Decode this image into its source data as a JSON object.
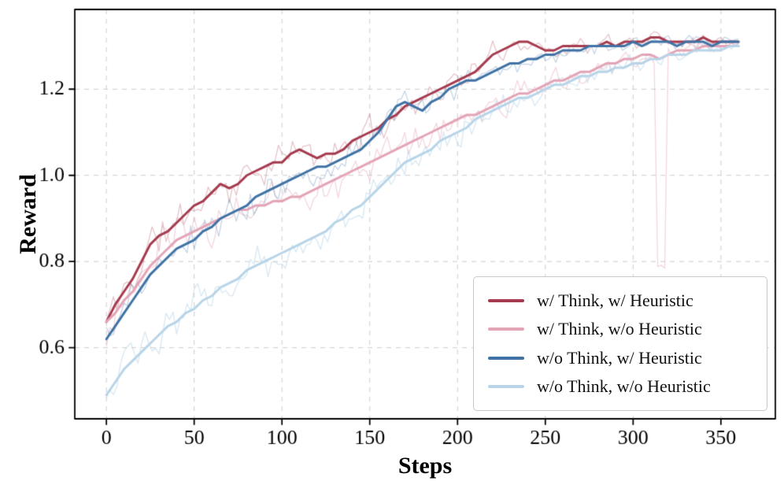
{
  "chart_data": {
    "type": "line",
    "title": "",
    "xlabel": "Steps",
    "ylabel": "Reward",
    "xlim": [
      -18,
      381
    ],
    "ylim": [
      0.435,
      1.385
    ],
    "xticks": [
      0,
      50,
      100,
      150,
      200,
      250,
      300,
      350
    ],
    "yticks": [
      0.6,
      0.8,
      1.0,
      1.2
    ],
    "grid": {
      "on": true,
      "style": "dashed",
      "color": "#cccccc"
    },
    "legend": {
      "position": "lower-right",
      "background": "#ffffff",
      "border_color": "#c9c9c9"
    },
    "x_start": 0,
    "x_step": 5,
    "x_end": 360,
    "series": [
      {
        "name": "w/ Think, w/ Heuristic",
        "color": "#a53b4f",
        "smoothed": [
          0.66,
          0.7,
          0.73,
          0.76,
          0.8,
          0.84,
          0.86,
          0.87,
          0.89,
          0.91,
          0.93,
          0.94,
          0.96,
          0.98,
          0.97,
          0.98,
          1.0,
          1.01,
          1.02,
          1.03,
          1.03,
          1.05,
          1.06,
          1.05,
          1.04,
          1.05,
          1.05,
          1.06,
          1.08,
          1.09,
          1.1,
          1.11,
          1.13,
          1.14,
          1.16,
          1.17,
          1.18,
          1.19,
          1.2,
          1.21,
          1.22,
          1.23,
          1.24,
          1.26,
          1.28,
          1.29,
          1.3,
          1.31,
          1.31,
          1.3,
          1.29,
          1.29,
          1.3,
          1.3,
          1.3,
          1.3,
          1.3,
          1.31,
          1.3,
          1.31,
          1.31,
          1.31,
          1.32,
          1.32,
          1.31,
          1.31,
          1.31,
          1.31,
          1.32,
          1.31,
          1.31,
          1.31,
          1.31
        ],
        "raw_noise": {
          "start": 0.065,
          "end": 0.015,
          "alpha": 0.3,
          "seed": 11
        }
      },
      {
        "name": "w/ Think, w/o Heuristic",
        "color": "#e3a4b6",
        "smoothed": [
          0.66,
          0.68,
          0.71,
          0.73,
          0.76,
          0.79,
          0.81,
          0.83,
          0.85,
          0.86,
          0.87,
          0.88,
          0.89,
          0.9,
          0.91,
          0.92,
          0.92,
          0.93,
          0.93,
          0.94,
          0.94,
          0.95,
          0.95,
          0.96,
          0.97,
          0.98,
          0.99,
          1.0,
          1.01,
          1.02,
          1.03,
          1.04,
          1.05,
          1.06,
          1.07,
          1.08,
          1.09,
          1.1,
          1.11,
          1.12,
          1.13,
          1.14,
          1.14,
          1.15,
          1.16,
          1.17,
          1.18,
          1.19,
          1.19,
          1.2,
          1.21,
          1.22,
          1.22,
          1.23,
          1.24,
          1.24,
          1.25,
          1.26,
          1.26,
          1.27,
          1.27,
          1.28,
          1.28,
          1.27,
          1.28,
          1.29,
          1.29,
          1.29,
          1.3,
          1.3,
          1.3,
          1.3,
          1.3
        ],
        "raw_noise": {
          "start": 0.075,
          "end": 0.03,
          "alpha": 0.45,
          "seed": 23
        }
      },
      {
        "name": "w/o Think, w/ Heuristic",
        "color": "#3f72a5",
        "smoothed": [
          0.62,
          0.65,
          0.68,
          0.71,
          0.74,
          0.77,
          0.79,
          0.81,
          0.83,
          0.84,
          0.85,
          0.87,
          0.88,
          0.9,
          0.91,
          0.92,
          0.93,
          0.95,
          0.96,
          0.97,
          0.98,
          0.99,
          1.0,
          1.01,
          1.02,
          1.02,
          1.03,
          1.04,
          1.05,
          1.06,
          1.08,
          1.1,
          1.13,
          1.16,
          1.17,
          1.16,
          1.15,
          1.17,
          1.18,
          1.2,
          1.21,
          1.22,
          1.22,
          1.23,
          1.24,
          1.25,
          1.26,
          1.26,
          1.27,
          1.27,
          1.28,
          1.28,
          1.29,
          1.29,
          1.29,
          1.3,
          1.3,
          1.3,
          1.3,
          1.3,
          1.31,
          1.3,
          1.31,
          1.31,
          1.31,
          1.3,
          1.31,
          1.31,
          1.31,
          1.3,
          1.31,
          1.31,
          1.31
        ],
        "raw_noise": {
          "start": 0.06,
          "end": 0.015,
          "alpha": 0.3,
          "seed": 37
        }
      },
      {
        "name": "w/o Think, w/o Heuristic",
        "color": "#b7d4e8",
        "smoothed": [
          0.49,
          0.52,
          0.55,
          0.57,
          0.59,
          0.61,
          0.63,
          0.65,
          0.66,
          0.68,
          0.69,
          0.71,
          0.72,
          0.74,
          0.75,
          0.76,
          0.78,
          0.79,
          0.8,
          0.81,
          0.82,
          0.83,
          0.84,
          0.85,
          0.86,
          0.87,
          0.89,
          0.9,
          0.92,
          0.93,
          0.95,
          0.97,
          0.99,
          1.01,
          1.03,
          1.04,
          1.05,
          1.06,
          1.08,
          1.09,
          1.1,
          1.11,
          1.13,
          1.14,
          1.15,
          1.16,
          1.17,
          1.18,
          1.18,
          1.19,
          1.2,
          1.21,
          1.21,
          1.22,
          1.23,
          1.23,
          1.24,
          1.24,
          1.25,
          1.25,
          1.26,
          1.26,
          1.27,
          1.27,
          1.28,
          1.28,
          1.28,
          1.29,
          1.29,
          1.29,
          1.29,
          1.3,
          1.3
        ],
        "raw_noise": {
          "start": 0.065,
          "end": 0.02,
          "alpha": 0.55,
          "seed": 53
        }
      }
    ],
    "anomalies": [
      {
        "series": 1,
        "x": 316,
        "value": 0.79
      }
    ]
  }
}
